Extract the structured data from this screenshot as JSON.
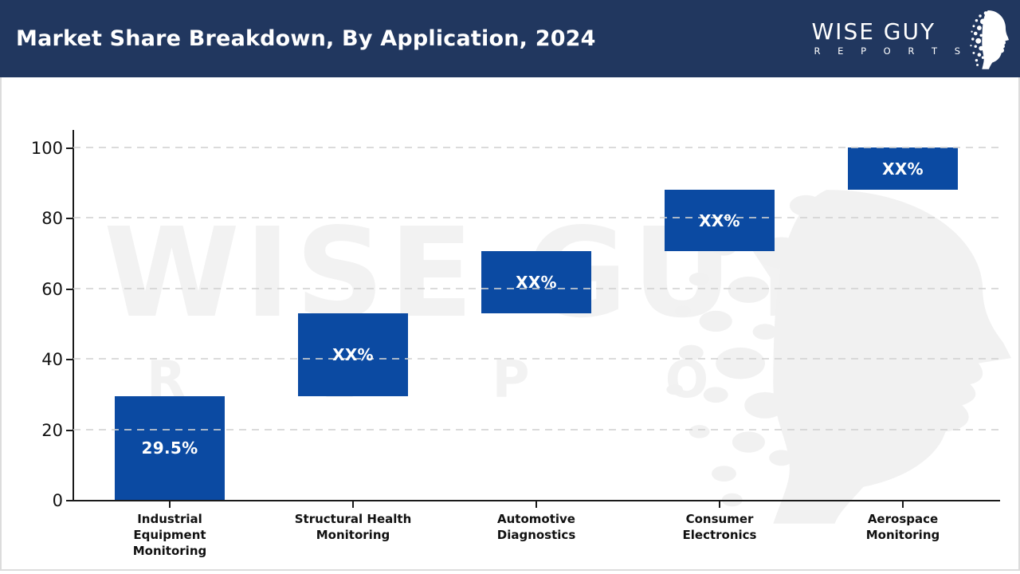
{
  "header": {
    "title": "Market Share Breakdown, By Application, 2024",
    "logo": {
      "name": "WISE GUY",
      "subname": "R E P O R T S"
    }
  },
  "watermark": {
    "line1": "WISE GUY",
    "line2": "R E P O R T S"
  },
  "colors": {
    "header_bg": "#21375f",
    "bar": "#0b4aa2",
    "axis": "#1a1a1a",
    "gridline": "#d2d2d2",
    "watermark": "#f2f2f2",
    "bar_label": "#ffffff"
  },
  "chart_data": {
    "type": "bar",
    "subtype": "waterfall",
    "title": "Market Share Breakdown, By Application, 2024",
    "categories": [
      [
        "Industrial",
        "Equipment",
        "Monitoring"
      ],
      [
        "Structural Health",
        "Monitoring"
      ],
      [
        "Automotive",
        "Diagnostics"
      ],
      [
        "Consumer",
        "Electronics"
      ],
      [
        "Aerospace",
        "Monitoring"
      ]
    ],
    "segments": [
      {
        "start": 0,
        "end": 29.5,
        "label": "29.5%"
      },
      {
        "start": 29.5,
        "end": 53,
        "label": "XX%"
      },
      {
        "start": 53,
        "end": 70.5,
        "label": "XX%"
      },
      {
        "start": 70.5,
        "end": 88,
        "label": "XX%"
      },
      {
        "start": 88,
        "end": 100,
        "label": "XX%"
      }
    ],
    "yticks": [
      0,
      20,
      40,
      60,
      80,
      100
    ],
    "ylim": [
      0,
      100
    ],
    "grid": "horizontal-dashed",
    "legend": "none"
  }
}
